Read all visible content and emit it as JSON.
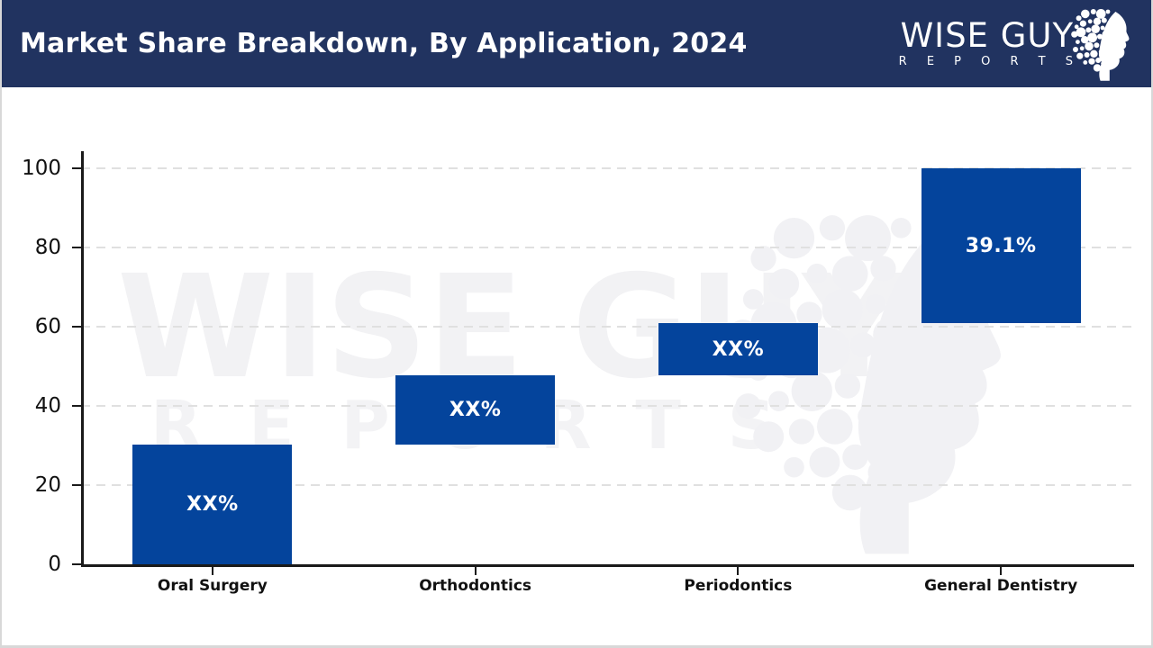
{
  "header": {
    "title": "Market Share Breakdown, By Application, 2024",
    "brand_line1": "WISE GUY",
    "brand_line2": "R E P O R T S",
    "bg_color": "#213360"
  },
  "watermark": {
    "line1": "WISE GUY",
    "line2": "REPORTS"
  },
  "chart_data": {
    "type": "bar",
    "subtype": "waterfall",
    "title": "Market Share Breakdown, By Application, 2024",
    "categories": [
      "Oral Surgery",
      "Orthodontics",
      "Periodontics",
      "General Dentistry"
    ],
    "segments": [
      {
        "category": "Oral Surgery",
        "start": 0,
        "end": 30.2,
        "label": "XX%"
      },
      {
        "category": "Orthodontics",
        "start": 30.2,
        "end": 47.7,
        "label": "XX%"
      },
      {
        "category": "Periodontics",
        "start": 47.7,
        "end": 60.9,
        "label": "XX%"
      },
      {
        "category": "General Dentistry",
        "start": 60.9,
        "end": 100,
        "label": "39.1%"
      }
    ],
    "yticks": [
      0,
      20,
      40,
      60,
      80,
      100
    ],
    "ylim": [
      0,
      105
    ],
    "xlabel": "",
    "ylabel": "",
    "grid": "horizontal-dashed",
    "legend": "none",
    "bar_color": "#04449c",
    "grid_color": "#e0e0e0",
    "axis_color": "#1a1a1a"
  }
}
